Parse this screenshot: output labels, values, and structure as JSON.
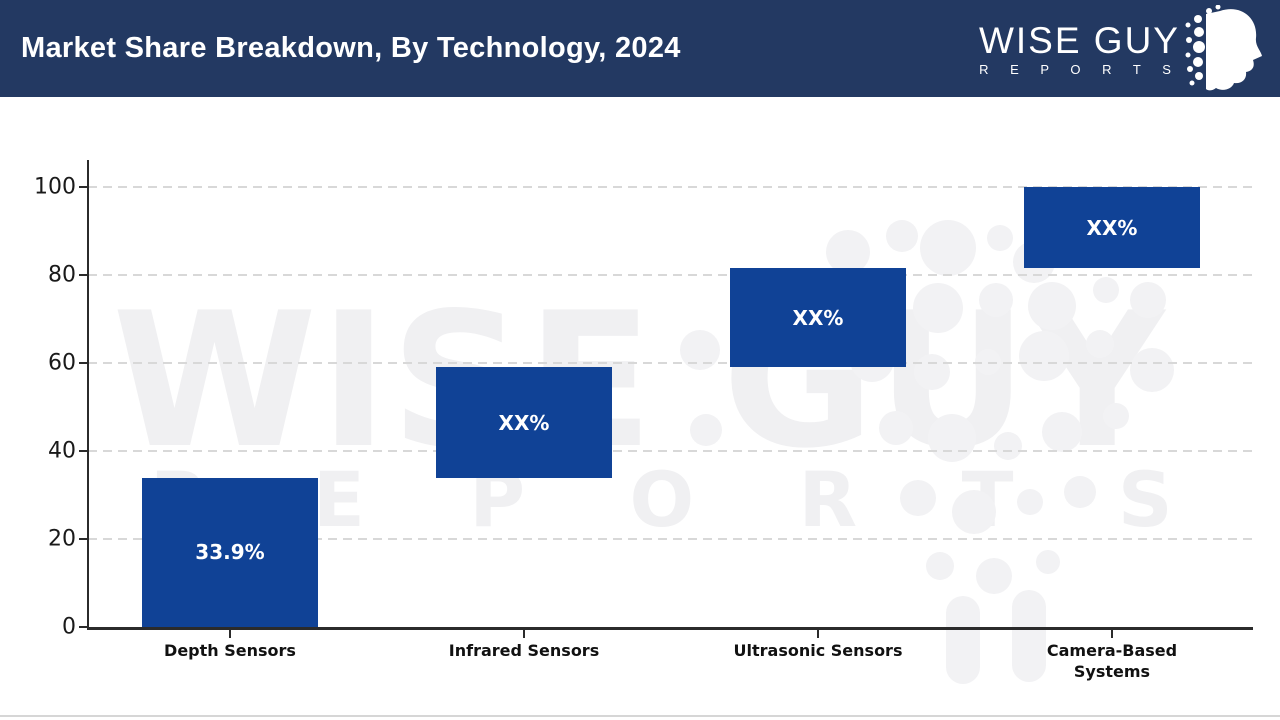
{
  "header": {
    "title": "Market Share Breakdown, By Technology, 2024",
    "logo": {
      "name": "WISE GUY",
      "tagline": "R E P O R T S"
    }
  },
  "watermark": {
    "line1": "WISE GUY",
    "line2": "R E P O R T S"
  },
  "colors": {
    "header_bg": "#233962",
    "bar": "#104296",
    "axis": "#2b2b2b",
    "grid": "#d8d8d8",
    "watermark": "#f0f0f2",
    "bar_label": "#ffffff",
    "tick_label": "#1a1a1a"
  },
  "chart_data": {
    "type": "bar",
    "variant": "waterfall",
    "title": "Market Share Breakdown, By Technology, 2024",
    "categories": [
      "Depth Sensors",
      "Infrared Sensors",
      "Ultrasonic Sensors",
      "Camera-Based Systems"
    ],
    "series": [
      {
        "name": "Market share (%)",
        "segments": [
          {
            "category": "Depth Sensors",
            "start": 0,
            "end": 33.9,
            "label": "33.9%"
          },
          {
            "category": "Infrared Sensors",
            "start": 33.9,
            "end": 59,
            "label": "XX%"
          },
          {
            "category": "Ultrasonic Sensors",
            "start": 59,
            "end": 81.5,
            "label": "XX%"
          },
          {
            "category": "Camera-Based Systems",
            "start": 81.5,
            "end": 100,
            "label": "XX%"
          }
        ]
      }
    ],
    "ylim": [
      0,
      105
    ],
    "yticks": [
      0,
      20,
      40,
      60,
      80,
      100
    ],
    "xlabel": "",
    "ylabel": "",
    "grid": "horizontal-dashed",
    "legend": "none"
  }
}
